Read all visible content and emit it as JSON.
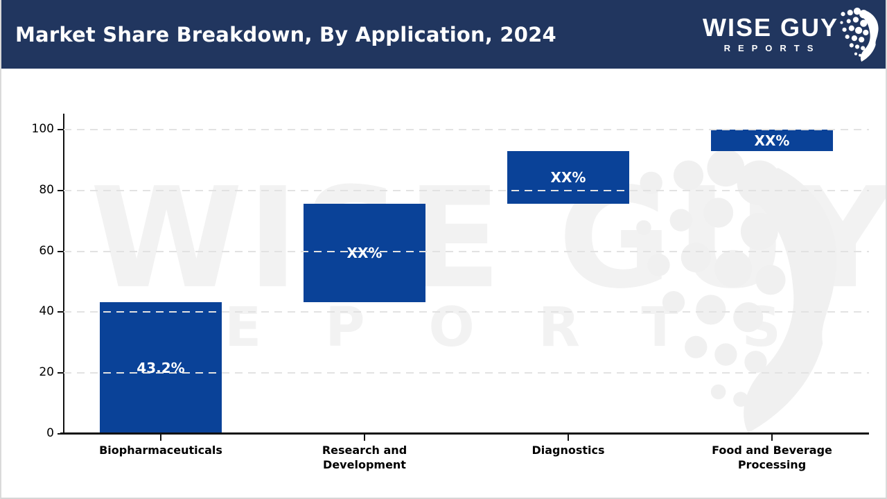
{
  "header": {
    "title": "Market Share Breakdown, By Application, 2024",
    "logo": {
      "brand_line1": "WISE GUY",
      "brand_line2": "REPORTS"
    }
  },
  "watermark": {
    "line1": "WISE GUY",
    "line2": "REPORTS"
  },
  "colors": {
    "header_bg": "#21365F",
    "bar": "#0A4298",
    "bar_label": "#FFFFFF",
    "grid": "#E2E2E2",
    "axis": "#111111",
    "watermark": "#F2F2F2"
  },
  "chart_data": {
    "type": "bar",
    "subtype": "waterfall",
    "title": "Market Share Breakdown, By Application, 2024",
    "xlabel": "",
    "ylabel": "",
    "ylim": [
      0,
      100
    ],
    "yticks": [
      0,
      20,
      40,
      60,
      80,
      100
    ],
    "grid": true,
    "legend": false,
    "categories": [
      "Biopharmaceuticals",
      "Research and Development",
      "Diagnostics",
      "Food and Beverage Processing"
    ],
    "bars": [
      {
        "category": "Biopharmaceuticals",
        "label_lines": [
          "Biopharmaceuticals"
        ],
        "start": 0,
        "end": 43.2,
        "value": 43.2,
        "value_label": "43.2%"
      },
      {
        "category": "Research and Development",
        "label_lines": [
          "Research and",
          "Development"
        ],
        "start": 43.2,
        "end": 75.6,
        "value": 32.4,
        "value_label": "XX%"
      },
      {
        "category": "Diagnostics",
        "label_lines": [
          "Diagnostics"
        ],
        "start": 75.6,
        "end": 92.9,
        "value": 17.3,
        "value_label": "XX%"
      },
      {
        "category": "Food and Beverage Processing",
        "label_lines": [
          "Food and Beverage",
          "Processing"
        ],
        "start": 92.9,
        "end": 100,
        "value": 7.1,
        "value_label": "XX%"
      }
    ]
  }
}
